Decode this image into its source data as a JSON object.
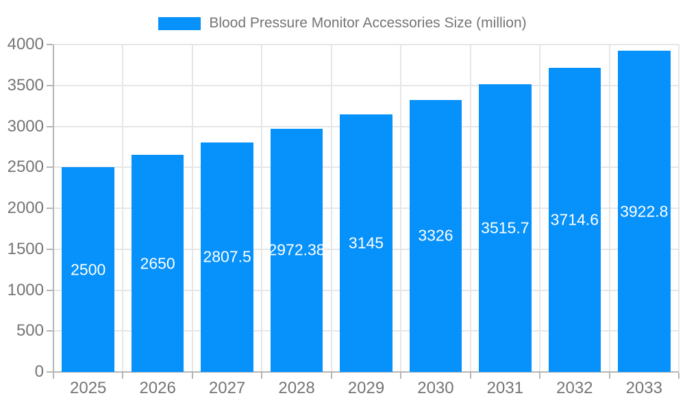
{
  "chart_data": {
    "type": "bar",
    "title": "Blood Pressure Monitor Accessories Size (million)",
    "categories": [
      "2025",
      "2026",
      "2027",
      "2028",
      "2029",
      "2030",
      "2031",
      "2032",
      "2033"
    ],
    "values": [
      2500,
      2650,
      2807.5,
      2972.38,
      3145,
      3326,
      3515.7,
      3714.6,
      3922.8
    ],
    "bar_labels": [
      "2500",
      "2650",
      "2807.5",
      "2972.38",
      "3145",
      "3326",
      "3515.7",
      "3714.6",
      "3922.8"
    ],
    "xlabel": "",
    "ylabel": "",
    "ylim": [
      0,
      4000
    ],
    "ytick_step": 500,
    "ytick_labels": [
      "0",
      "500",
      "1000",
      "1500",
      "2000",
      "2500",
      "3000",
      "3500",
      "4000"
    ],
    "legend_position": "top-center",
    "grid": "horizontal-and-vertical",
    "colors": {
      "bar": "#0691fb",
      "grid": "#e6e6e6",
      "axis": "#b5b5b5",
      "tick_text": "#757575",
      "legend_text": "#757575",
      "bar_label_text": "#ffffff",
      "background": "#ffffff"
    }
  }
}
